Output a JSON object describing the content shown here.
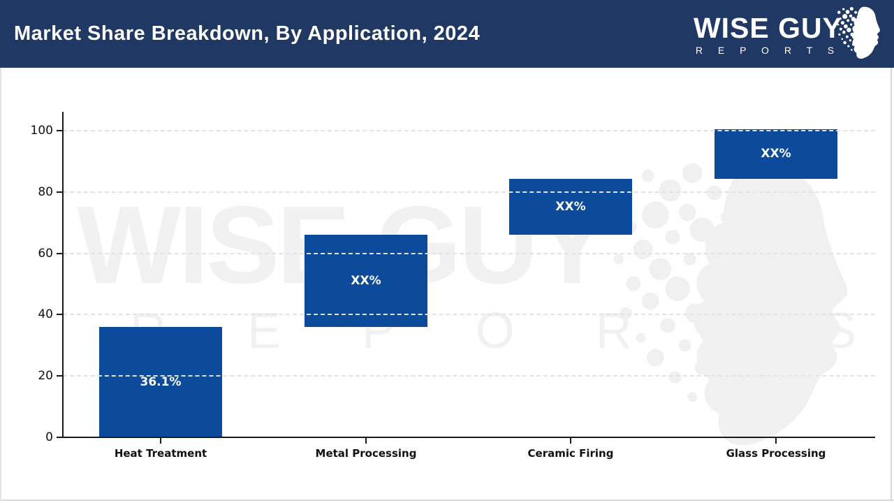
{
  "header": {
    "title": "Market Share Breakdown, By Application, 2024",
    "logo": {
      "line1": "WISE GUY",
      "line2": "R E P O R T S"
    }
  },
  "watermark": {
    "line1": "WISE GUY",
    "line2": "R E P O R T S"
  },
  "colors": {
    "header_bg": "#1f3864",
    "bar": "#0c4a9c",
    "grid": "#e3e3e3",
    "axis": "#1a1a1a",
    "watermark": "#f1f1f1",
    "bar_label_text": "#ffffff",
    "title_text": "#ffffff"
  },
  "chart_data": {
    "type": "bar",
    "subtype": "waterfall",
    "title": "Market Share Breakdown, By Application, 2024",
    "categories": [
      "Heat Treatment",
      "Metal Processing",
      "Ceramic Firing",
      "Glass Processing"
    ],
    "segments": [
      {
        "category": "Heat Treatment",
        "start": 0,
        "end": 36.1,
        "label": "36.1%"
      },
      {
        "category": "Metal Processing",
        "start": 36.1,
        "end": 66.1,
        "label": "XX%"
      },
      {
        "category": "Ceramic Firing",
        "start": 66.1,
        "end": 84.3,
        "label": "XX%"
      },
      {
        "category": "Glass Processing",
        "start": 84.3,
        "end": 100.5,
        "label": "XX%"
      }
    ],
    "yticks": [
      0,
      20,
      40,
      60,
      80,
      100
    ],
    "ylim": [
      0,
      105
    ],
    "xlabel": "",
    "ylabel": "",
    "grid": "horizontal-dashed, drawn above bars",
    "legend": "none"
  }
}
